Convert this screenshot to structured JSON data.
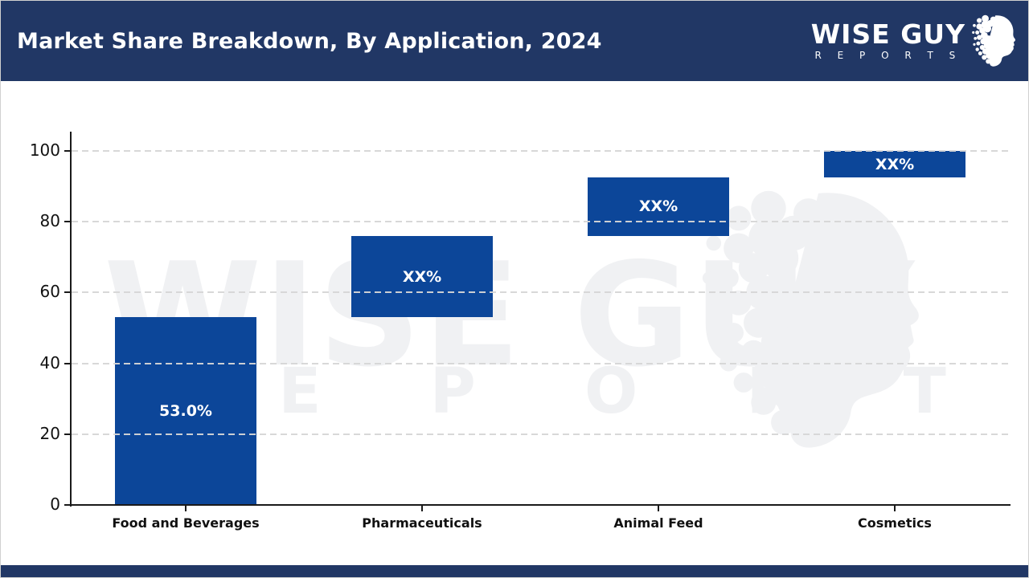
{
  "header": {
    "title": "Market Share Breakdown, By Application, 2024",
    "logo": {
      "line1": "WISE GUY",
      "line2": "R E P O R T S"
    }
  },
  "watermark": {
    "line1": "WISE GUY",
    "line2": "R E P O R T S"
  },
  "chart_data": {
    "type": "bar",
    "subtype": "stacked-waterfall-share",
    "title": "Market Share Breakdown, By Application, 2024",
    "categories": [
      "Food and Beverages",
      "Pharmaceuticals",
      "Animal Feed",
      "Cosmetics"
    ],
    "segment_start": [
      0,
      53,
      76,
      92.5
    ],
    "values": [
      53.0,
      23.0,
      16.5,
      7.5
    ],
    "bar_labels": [
      "53.0%",
      "XX%",
      "XX%",
      "XX%"
    ],
    "xlabel": "",
    "ylabel": "",
    "ylim": [
      0,
      100
    ],
    "yticks": [
      0,
      20,
      40,
      60,
      80,
      100
    ],
    "grid": {
      "horizontal": true,
      "style": "dashed",
      "color": "#d6d6d6"
    },
    "legend": null,
    "bar_color": "#0c4699",
    "bar_label_color": "#ffffff"
  },
  "colors": {
    "header_bg": "#213765",
    "footer_bg": "#213765",
    "axis": "#1a1a1a",
    "watermark": "#f0f1f3",
    "page_bg": "#ffffff"
  }
}
